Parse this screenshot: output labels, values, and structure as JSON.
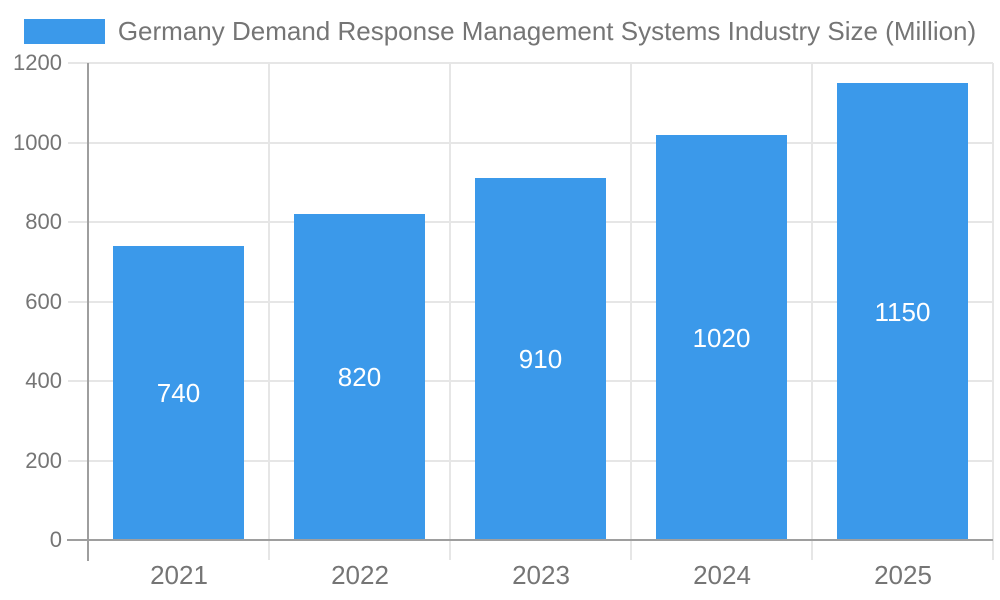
{
  "chart_data": {
    "type": "bar",
    "series_name": "Germany Demand Response Management Systems Industry Size (Million)",
    "categories": [
      "2021",
      "2022",
      "2023",
      "2024",
      "2025"
    ],
    "values": [
      740,
      820,
      910,
      1020,
      1150
    ],
    "value_labels": [
      "740",
      "820",
      "910",
      "1020",
      "1150"
    ],
    "title": "",
    "xlabel": "",
    "ylabel": "",
    "ylim": [
      0,
      1200
    ],
    "yticks": [
      0,
      200,
      400,
      600,
      800,
      1000,
      1200
    ],
    "grid": true,
    "legend_position": "top-center",
    "colors": {
      "bar": "#3b99ea",
      "grid": "#e6e6e6",
      "axis": "#9e9e9e",
      "tick_text": "#757575",
      "legend_text": "#757575",
      "value_label_text": "#ffffff",
      "background": "#ffffff"
    }
  }
}
